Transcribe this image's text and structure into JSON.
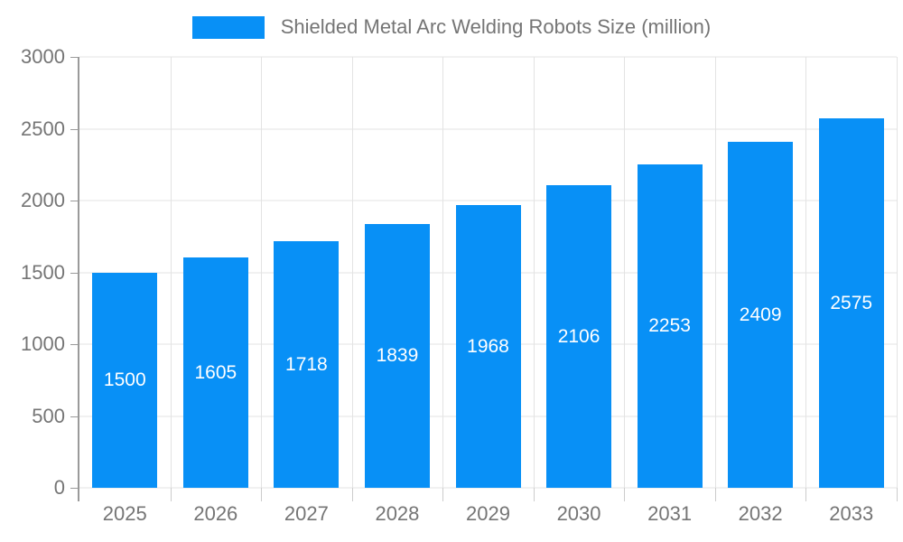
{
  "legend": {
    "label": "Shielded Metal Arc Welding Robots Size (million)"
  },
  "chart_data": {
    "type": "bar",
    "title": "Shielded Metal Arc Welding Robots Size (million)",
    "categories": [
      "2025",
      "2026",
      "2027",
      "2028",
      "2029",
      "2030",
      "2031",
      "2032",
      "2033"
    ],
    "values": [
      1500,
      1605,
      1718,
      1839,
      1968,
      2106,
      2253,
      2409,
      2575
    ],
    "xlabel": "",
    "ylabel": "",
    "ylim": [
      0,
      3000
    ],
    "yticks": [
      0,
      500,
      1000,
      1500,
      2000,
      2500,
      3000
    ],
    "grid": true,
    "legend_position": "top-center",
    "bar_labels_inside": true,
    "colors": {
      "bar": "#0890f6",
      "grid": "#e3e3e3",
      "axis": "#9a9a9a",
      "tick_text": "#757575",
      "bar_label": "#ffffff"
    }
  }
}
